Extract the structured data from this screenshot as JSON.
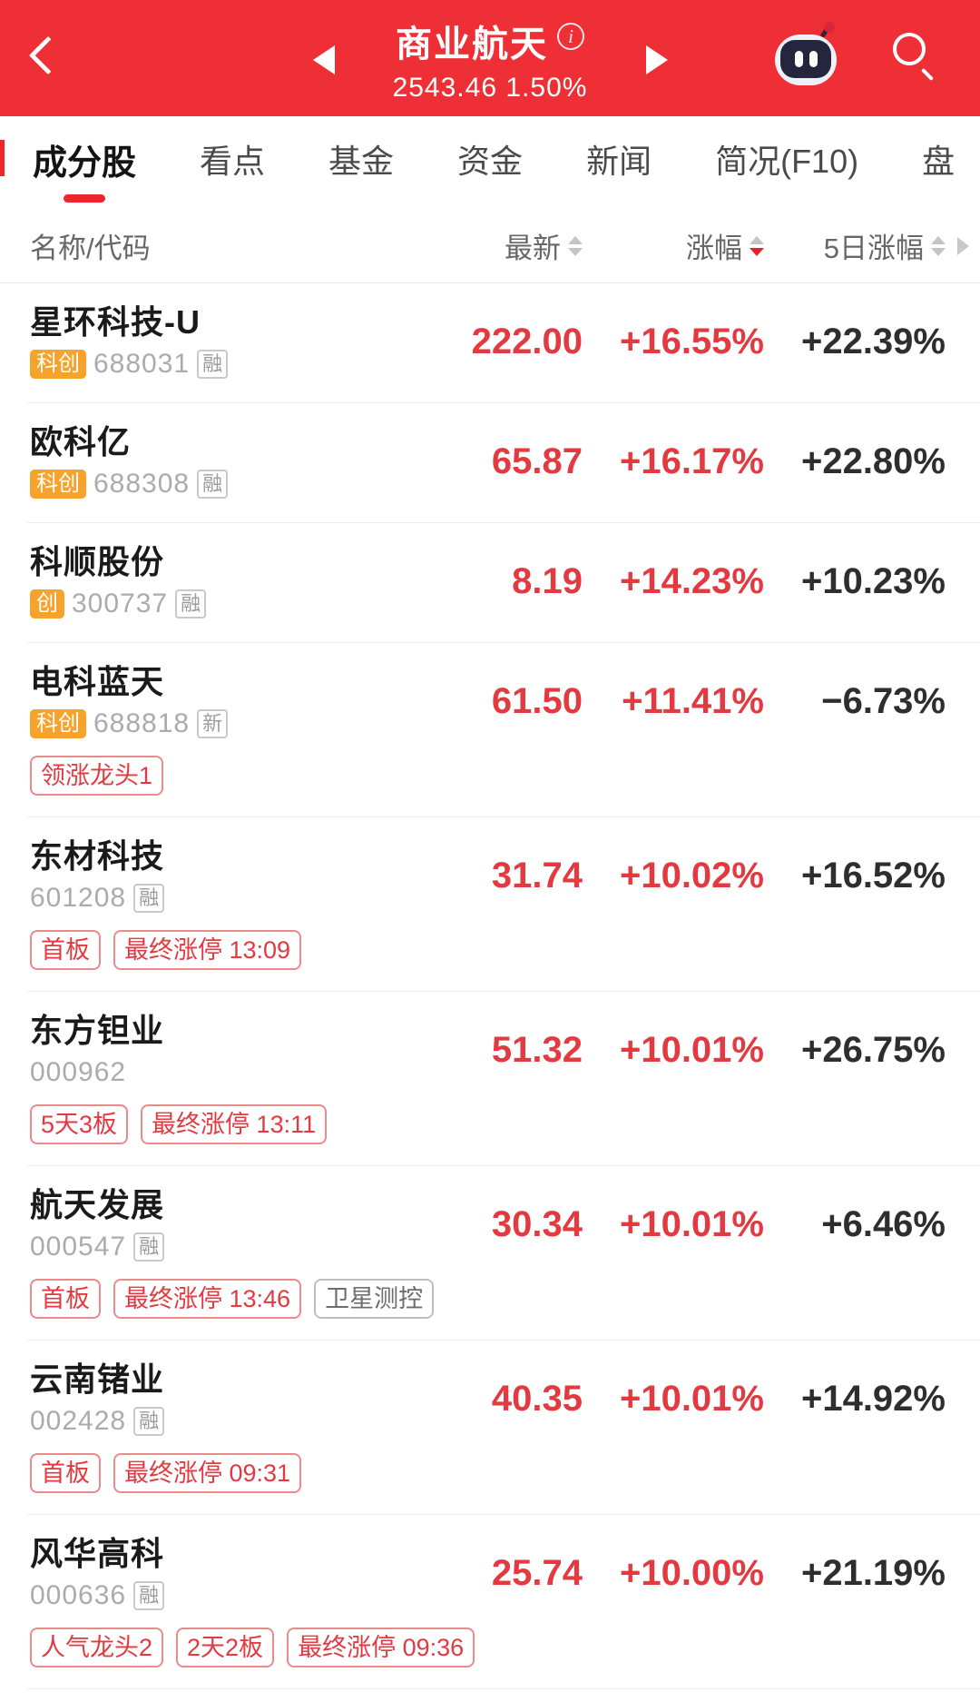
{
  "colors": {
    "header-bg": "#ee2f35",
    "up-red": "#e23a40",
    "dark-num": "#2e2e2e",
    "badge-orange": "#f7a22b"
  },
  "header": {
    "title": "商业航天",
    "index_value": "2543.46",
    "index_change": "1.50%"
  },
  "tabs": {
    "active_index": 0,
    "items": [
      {
        "label": "成分股"
      },
      {
        "label": "看点"
      },
      {
        "label": "基金"
      },
      {
        "label": "资金"
      },
      {
        "label": "新闻"
      },
      {
        "label": "简况(F10)"
      },
      {
        "label": "盘"
      }
    ]
  },
  "table_header": {
    "name_col": "名称/代码",
    "cols": [
      {
        "label": "最新",
        "sort": "none"
      },
      {
        "label": "涨幅",
        "sort": "desc"
      },
      {
        "label": "5日涨幅",
        "sort": "none"
      }
    ]
  },
  "stocks": [
    {
      "name": "星环科技-U",
      "market_badge": "科创",
      "code": "688031",
      "flags": [
        "融"
      ],
      "price": "222.00",
      "change": "+16.55%",
      "change5d": "+22.39%",
      "tags": []
    },
    {
      "name": "欧科亿",
      "market_badge": "科创",
      "code": "688308",
      "flags": [
        "融"
      ],
      "price": "65.87",
      "change": "+16.17%",
      "change5d": "+22.80%",
      "tags": []
    },
    {
      "name": "科顺股份",
      "market_badge": "创",
      "code": "300737",
      "flags": [
        "融"
      ],
      "price": "8.19",
      "change": "+14.23%",
      "change5d": "+10.23%",
      "tags": []
    },
    {
      "name": "电科蓝天",
      "market_badge": "科创",
      "code": "688818",
      "flags": [
        "新"
      ],
      "price": "61.50",
      "change": "+11.41%",
      "change5d": "−6.73%",
      "tags": [
        {
          "text": "领涨龙头1",
          "style": "red"
        }
      ]
    },
    {
      "name": "东材科技",
      "market_badge": null,
      "code": "601208",
      "flags": [
        "融"
      ],
      "price": "31.74",
      "change": "+10.02%",
      "change5d": "+16.52%",
      "tags": [
        {
          "text": "首板",
          "style": "red"
        },
        {
          "text": "最终涨停 13:09",
          "style": "red"
        }
      ]
    },
    {
      "name": "东方钽业",
      "market_badge": null,
      "code": "000962",
      "flags": [],
      "price": "51.32",
      "change": "+10.01%",
      "change5d": "+26.75%",
      "tags": [
        {
          "text": "5天3板",
          "style": "red"
        },
        {
          "text": "最终涨停 13:11",
          "style": "red"
        }
      ]
    },
    {
      "name": "航天发展",
      "market_badge": null,
      "code": "000547",
      "flags": [
        "融"
      ],
      "price": "30.34",
      "change": "+10.01%",
      "change5d": "+6.46%",
      "tags": [
        {
          "text": "首板",
          "style": "red"
        },
        {
          "text": "最终涨停 13:46",
          "style": "red"
        },
        {
          "text": "卫星测控",
          "style": "gray"
        }
      ]
    },
    {
      "name": "云南锗业",
      "market_badge": null,
      "code": "002428",
      "flags": [
        "融"
      ],
      "price": "40.35",
      "change": "+10.01%",
      "change5d": "+14.92%",
      "tags": [
        {
          "text": "首板",
          "style": "red"
        },
        {
          "text": "最终涨停 09:31",
          "style": "red"
        }
      ]
    },
    {
      "name": "风华高科",
      "market_badge": null,
      "code": "000636",
      "flags": [
        "融"
      ],
      "price": "25.74",
      "change": "+10.00%",
      "change5d": "+21.19%",
      "tags": [
        {
          "text": "人气龙头2",
          "style": "red"
        },
        {
          "text": "2天2板",
          "style": "red"
        },
        {
          "text": "最终涨停 09:36",
          "style": "red"
        }
      ]
    }
  ]
}
